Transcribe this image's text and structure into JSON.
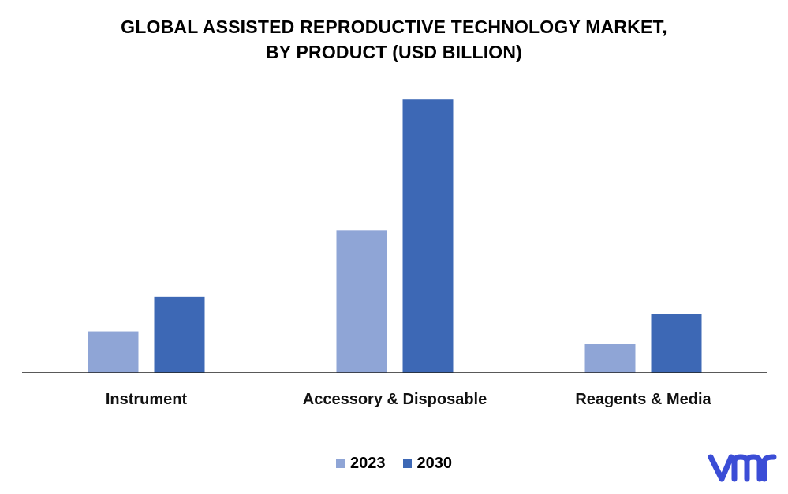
{
  "chart_data": {
    "type": "bar",
    "title_line1": "GLOBAL ASSISTED REPRODUCTIVE TECHNOLOGY MARKET,",
    "title_line2": "BY PRODUCT (USD BILLION)",
    "categories": [
      "Instrument",
      "Accessory & Disposable",
      "Reagents & Media"
    ],
    "series": [
      {
        "name": "2023",
        "color": "#8fa5d6",
        "values": [
          0.9,
          3.1,
          0.63
        ]
      },
      {
        "name": "2030",
        "color": "#3d68b5",
        "values": [
          1.65,
          5.95,
          1.27
        ]
      }
    ],
    "xlabel": "",
    "ylabel": "",
    "ylim": [
      0,
      6.4
    ],
    "grid": false,
    "legend_position": "bottom-center"
  },
  "logo": {
    "icon": "vmr-logo-icon",
    "color": "#3b4dd6"
  }
}
